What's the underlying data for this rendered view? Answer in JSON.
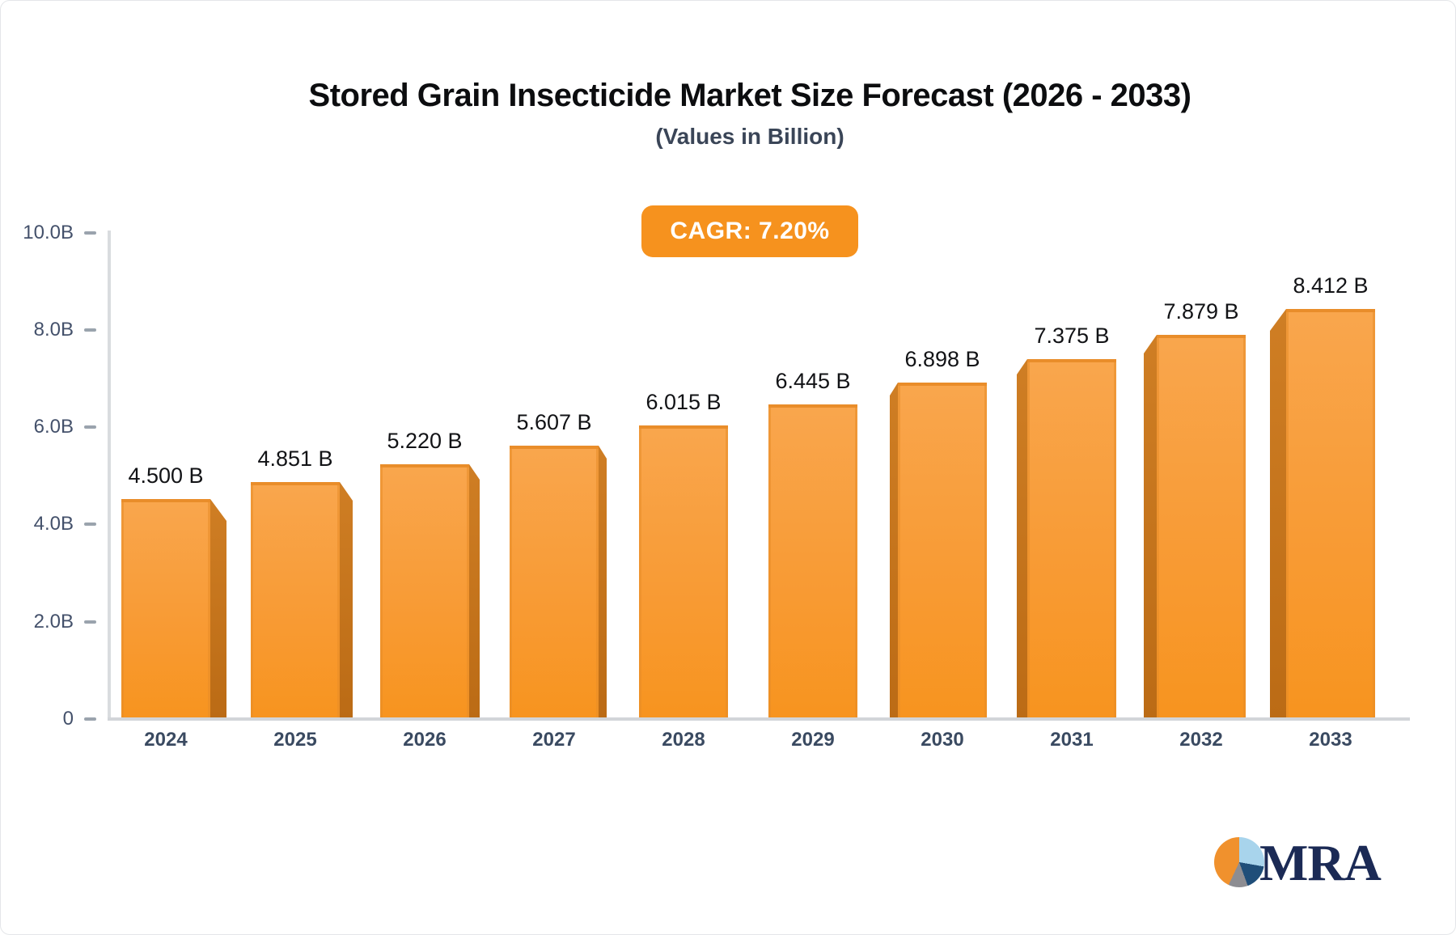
{
  "chart_data": {
    "type": "bar",
    "title": "Stored Grain Insecticide Market Size Forecast (2026 - 2033)",
    "subtitle": "(Values in Billion)",
    "annotation": "CAGR: 7.20%",
    "categories": [
      "2024",
      "2025",
      "2026",
      "2027",
      "2028",
      "2029",
      "2030",
      "2031",
      "2032",
      "2033"
    ],
    "values": [
      4.5,
      4.851,
      5.22,
      5.607,
      6.015,
      6.445,
      6.898,
      7.375,
      7.879,
      8.412
    ],
    "bar_labels": [
      "4.500 B",
      "4.851 B",
      "5.220 B",
      "5.607 B",
      "6.015 B",
      "6.445 B",
      "6.898 B",
      "7.375 B",
      "7.879 B",
      "8.412 B"
    ],
    "xlabel": "",
    "ylabel": "",
    "ylim": [
      0,
      10
    ],
    "yticks": [
      {
        "label": "10.0B",
        "value": 10
      },
      {
        "label": "8.0B",
        "value": 8
      },
      {
        "label": "6.0B",
        "value": 6
      },
      {
        "label": "4.0B",
        "value": 4
      },
      {
        "label": "2.0B",
        "value": 2
      },
      {
        "label": "0",
        "value": 0
      }
    ],
    "grid": false,
    "legend": null,
    "effect_3d": {
      "side": [
        "right",
        "right",
        "right",
        "right",
        "none",
        "none",
        "left",
        "left",
        "left",
        "left"
      ],
      "side_widths": [
        20,
        16,
        13,
        10,
        0,
        0,
        10,
        13,
        16,
        20
      ]
    }
  },
  "colors": {
    "bar_top": "#f9a64d",
    "bar_bottom": "#f7941f",
    "bar_edge": "#e98d2a",
    "bar_side": "#c3721c",
    "badge_bg": "#f6921e",
    "badge_text": "#ffffff",
    "axis_line": "#d2d5d9",
    "tick": "#9aa3ad",
    "tick_label": "#44516b",
    "x_label": "#3a4a61",
    "value_label": "#121316",
    "title": "#0c0d0f",
    "subtitle": "#3a4557",
    "logo_navy": "#1b2a55",
    "logo_orange": "#f0912d",
    "logo_light_blue": "#a8d4ec",
    "logo_blue": "#1f4e79",
    "logo_gray": "#8d8d92"
  },
  "logo": {
    "text": "MRA"
  }
}
